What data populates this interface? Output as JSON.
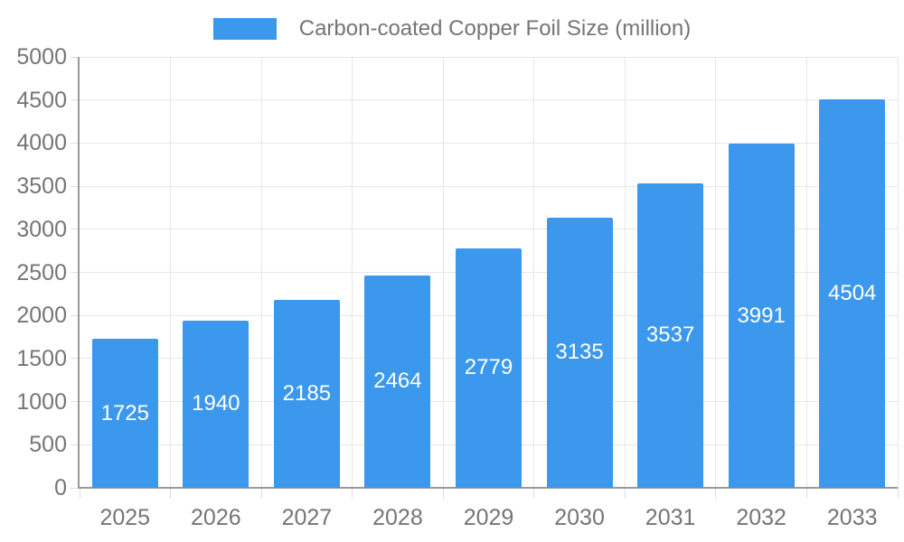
{
  "legend": {
    "label": "Carbon-coated Copper Foil Size (million)",
    "swatch_color": "#3B98ED"
  },
  "colors": {
    "bar": "#3B98ED",
    "bar_label": "#FFFFFF",
    "axis_line": "#999999",
    "grid_line": "#E6E6E6",
    "tick_mark": "#DDDDDD",
    "label_text": "#757575",
    "background": "#FFFFFF"
  },
  "chart_data": {
    "type": "bar",
    "title": "Carbon-coated Copper Foil Size (million)",
    "categories": [
      "2025",
      "2026",
      "2027",
      "2028",
      "2029",
      "2030",
      "2031",
      "2032",
      "2033"
    ],
    "values": [
      1725,
      1940,
      2185,
      2464,
      2779,
      3135,
      3537,
      3991,
      4504
    ],
    "xlabel": "",
    "ylabel": "",
    "ylim": [
      0,
      5000
    ],
    "ytick_step": 500,
    "ytick_labels": [
      "0",
      "500",
      "1000",
      "1500",
      "2000",
      "2500",
      "3000",
      "3500",
      "4000",
      "4500",
      "5000"
    ],
    "grid": true,
    "legend_position": "top-center",
    "bar_value_labels": "inside-center"
  }
}
